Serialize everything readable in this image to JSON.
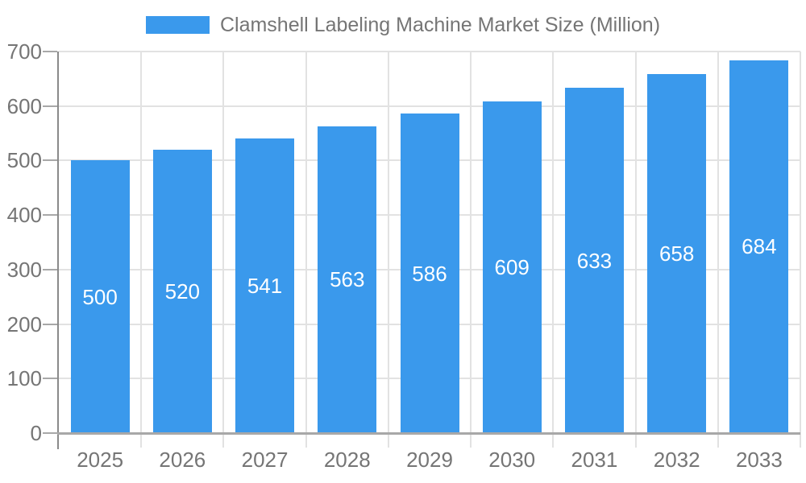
{
  "legend": {
    "label": "Clamshell Labeling Machine Market Size (Million)"
  },
  "chart_data": {
    "type": "bar",
    "title": "Clamshell Labeling Machine Market Size (Million)",
    "categories": [
      "2025",
      "2026",
      "2027",
      "2028",
      "2029",
      "2030",
      "2031",
      "2032",
      "2033"
    ],
    "values": [
      500,
      520,
      541,
      563,
      586,
      609,
      633,
      658,
      684
    ],
    "series": [
      {
        "name": "Clamshell Labeling Machine Market Size (Million)",
        "values": [
          500,
          520,
          541,
          563,
          586,
          609,
          633,
          658,
          684
        ]
      }
    ],
    "xlabel": "",
    "ylabel": "",
    "ylim": [
      0,
      700
    ],
    "yticks": [
      0,
      100,
      200,
      300,
      400,
      500,
      600,
      700
    ],
    "grid": true,
    "legend_position": "top-center",
    "value_label_position": "inside-middle",
    "colors": {
      "bar": "#3A99EC",
      "grid": "#E2E2E2",
      "axis_x": "#A8A8A8",
      "axis_y": "#8A8A8A",
      "tick": "#A8A8A8",
      "axis_label": "#757575",
      "value_label": "#FFFFFF",
      "background": "#FFFFFF"
    }
  }
}
